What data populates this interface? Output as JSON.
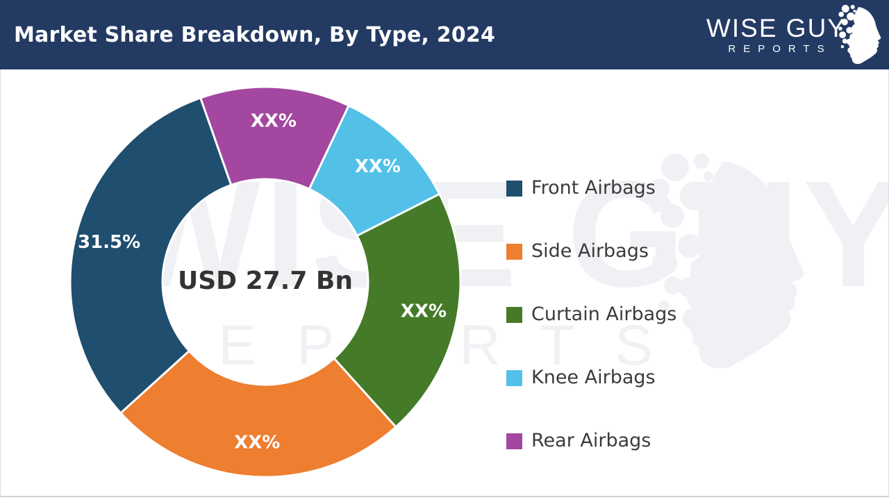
{
  "header": {
    "title": "Market Share Breakdown, By Type, 2024",
    "logo": {
      "line1": "WISE GUY",
      "line2": "REPORTS"
    }
  },
  "watermark": {
    "line1": "WISE GUY",
    "line2": "REPORTS"
  },
  "colors": {
    "header_bg": "#233A63",
    "front_airbags": "#1F4E6E",
    "side_airbags": "#EE7E30",
    "curtain_airbags": "#447A28",
    "knee_airbags": "#53C0E8",
    "rear_airbags": "#A347A0",
    "slice_label_text": "#FFFFFF",
    "center_label_text": "#333333",
    "legend_text": "#3B3B3B",
    "watermark": "#F0F1F4",
    "bottom_line": "#D2D2D2"
  },
  "chart_data": {
    "type": "pie",
    "subtype": "donut",
    "title": "Market Share Breakdown, By Type, 2024",
    "center_label": "USD 27.7 Bn",
    "legend_position": "right",
    "angle_reference": "degrees clockwise from 12 o'clock",
    "segments": [
      {
        "name": "Front Airbags",
        "label": "31.5%",
        "share_pct": 31.5,
        "start_deg": 227.8,
        "end_deg": 340.6,
        "color": "#1F4E6E"
      },
      {
        "name": "Side Airbags",
        "label": "XX%",
        "share_pct": 24.9,
        "start_deg": 138.0,
        "end_deg": 227.8,
        "color": "#EE7E30"
      },
      {
        "name": "Curtain Airbags",
        "label": "XX%",
        "share_pct": 20.8,
        "start_deg": 63.2,
        "end_deg": 138.0,
        "color": "#447A28"
      },
      {
        "name": "Knee Airbags",
        "label": "XX%",
        "share_pct": 10.5,
        "start_deg": 25.3,
        "end_deg": 63.2,
        "color": "#53C0E8"
      },
      {
        "name": "Rear Airbags",
        "label": "XX%",
        "share_pct": 12.3,
        "start_deg": 340.6,
        "end_deg": 385.3,
        "color": "#A347A0"
      }
    ]
  }
}
